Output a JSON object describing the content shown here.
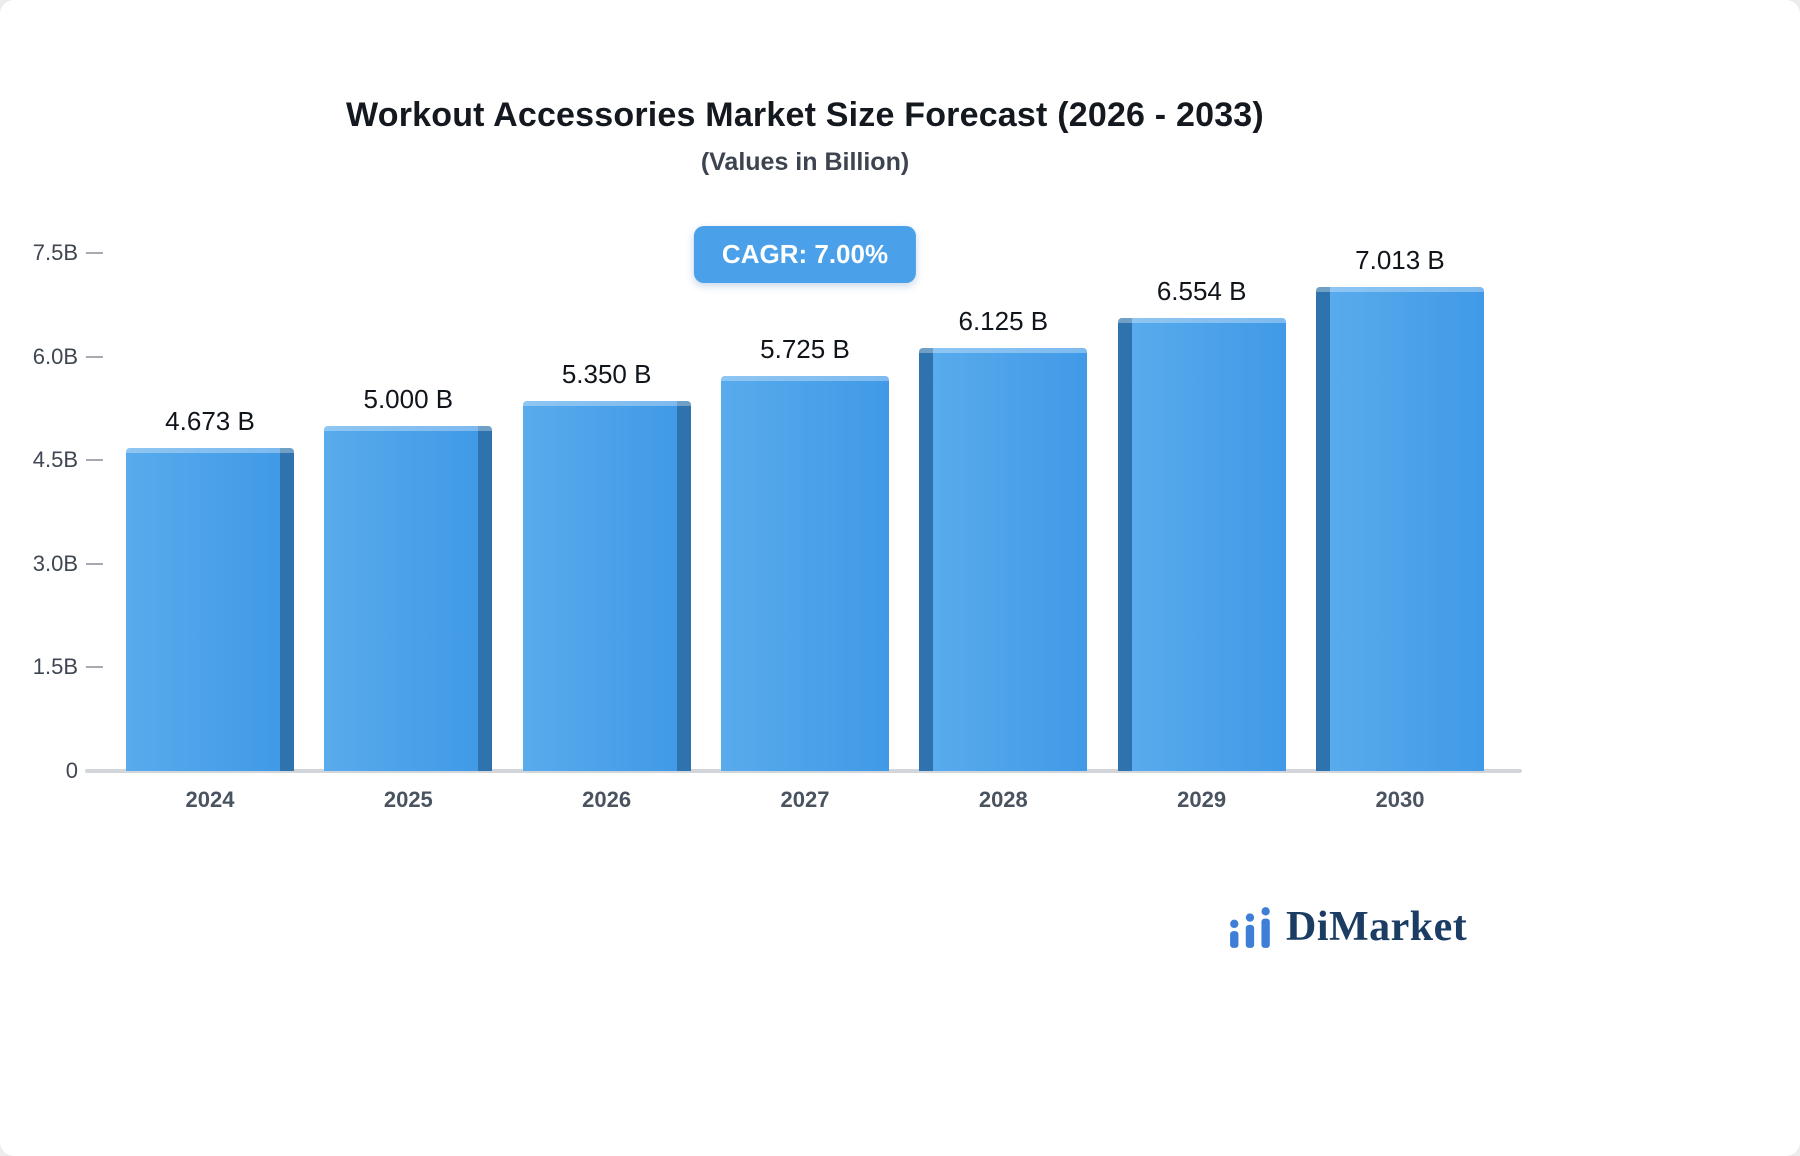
{
  "chart_data": {
    "type": "bar",
    "title": "Workout Accessories Market Size Forecast (2026 - 2033)",
    "subtitle": "(Values in Billion)",
    "cagr_label": "CAGR: 7.00%",
    "categories": [
      "2024",
      "2025",
      "2026",
      "2027",
      "2028",
      "2029",
      "2030"
    ],
    "values": [
      4.673,
      5.0,
      5.35,
      5.725,
      6.125,
      6.554,
      7.013
    ],
    "value_labels": [
      "4.673 B",
      "5.000 B",
      "5.350 B",
      "5.725 B",
      "6.125 B",
      "6.554 B",
      "7.013 B"
    ],
    "y_ticks": [
      "7.5B",
      "6.0B",
      "4.5B",
      "3.0B",
      "1.5B",
      "0"
    ],
    "y_tick_values": [
      7.5,
      6.0,
      4.5,
      3.0,
      1.5,
      0
    ],
    "ylim": [
      0,
      7.5
    ],
    "xlabel": "",
    "ylabel": "",
    "grid": false,
    "legend": false
  },
  "footer": {
    "brand": "DiMarket"
  },
  "colors": {
    "bar_face": "#419ae7",
    "bar_light": "#58abec",
    "bar_side": "#2e73ad",
    "badge_bg": "#4aa0e9",
    "logo_navy": "#1b3c63",
    "logo_blue": "#3e7ed6"
  }
}
